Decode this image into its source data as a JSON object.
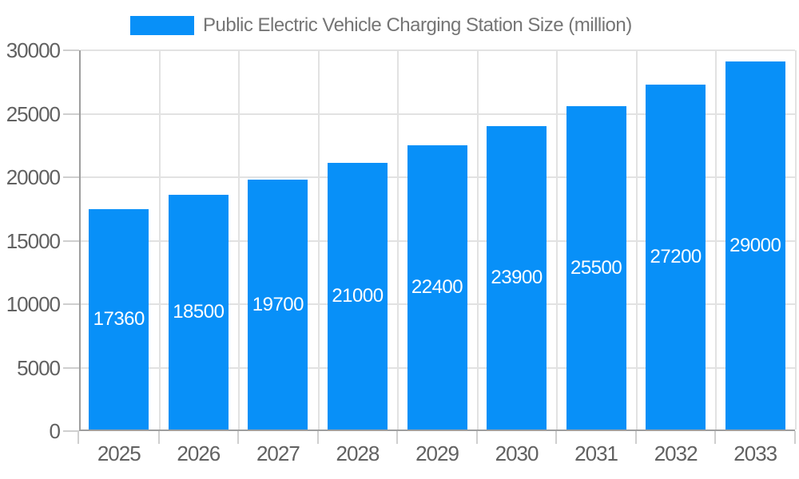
{
  "chart_data": {
    "type": "bar",
    "title": "Public Electric Vehicle Charging Station Size (million)",
    "categories": [
      "2025",
      "2026",
      "2027",
      "2028",
      "2029",
      "2030",
      "2031",
      "2032",
      "2033"
    ],
    "values": [
      17360,
      18500,
      19700,
      21000,
      22400,
      23900,
      25500,
      27200,
      29000
    ],
    "series": [
      {
        "name": "Public Electric Vehicle Charging Station Size (million)",
        "values": [
          17360,
          18500,
          19700,
          21000,
          22400,
          23900,
          25500,
          27200,
          29000
        ]
      }
    ],
    "xlabel": "",
    "ylabel": "",
    "ylim": [
      0,
      30000
    ],
    "yticks": [
      0,
      5000,
      10000,
      15000,
      20000,
      25000,
      30000
    ],
    "grid": true,
    "legend_position": "top",
    "bar_labels_inside": true
  },
  "colors": {
    "bar": "#0890f8",
    "bar_label": "#ffffff",
    "legend_text": "#757575",
    "tick_text": "#616161",
    "gridline": "#e2e2e2",
    "axis_line": "#9e9e9e",
    "tick_mark": "#cfcfcf",
    "background": "#ffffff"
  }
}
